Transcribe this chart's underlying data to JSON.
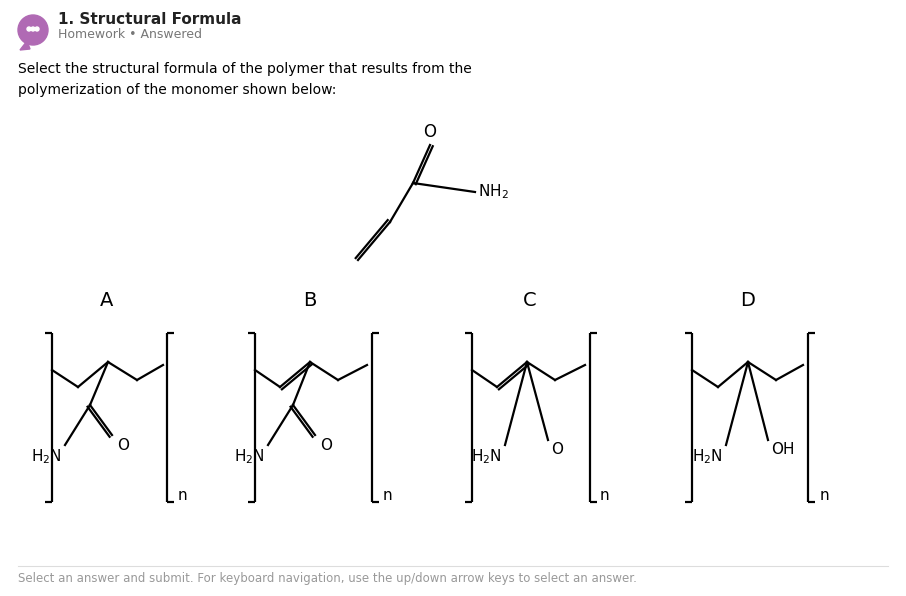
{
  "title": "1. Structural Formula",
  "subtitle": "Homework • Answered",
  "question": "Select the structural formula of the polymer that results from the\npolymerization of the monomer shown below:",
  "footer": "Select an answer and submit. For keyboard navigation, use the up/down arrow keys to select an answer.",
  "option_labels": [
    "A",
    "B",
    "C",
    "D"
  ],
  "bg_color": "#ffffff",
  "text_color": "#000000",
  "header_color": "#222222",
  "subtitle_color": "#777777",
  "footer_color": "#999999",
  "icon_color": "#b06ab4",
  "lw": 1.6
}
